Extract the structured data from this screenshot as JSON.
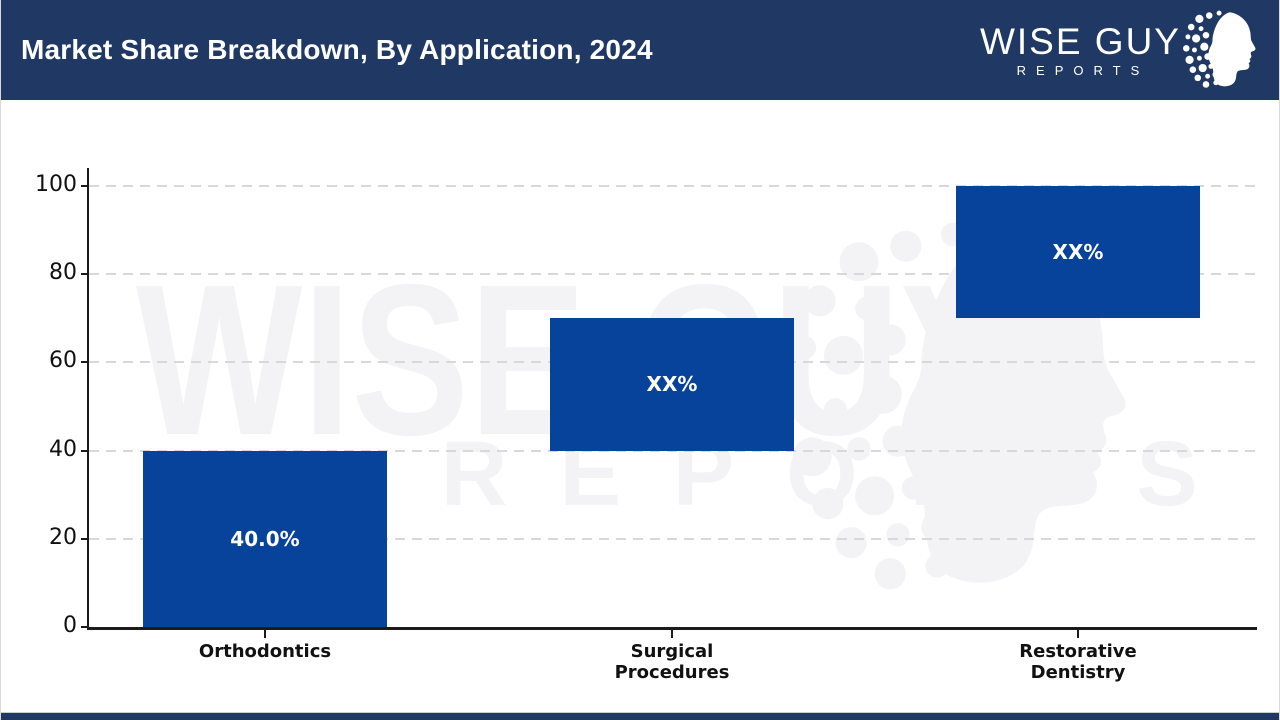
{
  "header": {
    "title": "Market Share Breakdown, By Application, 2024",
    "logo": {
      "line1": "WISE GUY",
      "line2": "REPORTS"
    }
  },
  "watermark": {
    "line1": "WISE GUY",
    "line2": "REPORTS"
  },
  "chart_data": {
    "type": "bar",
    "subtype": "waterfall-floating-segments",
    "title": "Market Share Breakdown, By Application, 2024",
    "categories": [
      "Orthodontics",
      "Surgical Procedures",
      "Restorative Dentistry"
    ],
    "category_display_lines": [
      [
        "Orthodontics"
      ],
      [
        "Surgical",
        "Procedures"
      ],
      [
        "Restorative",
        "Dentistry"
      ]
    ],
    "segments": [
      {
        "category": "Orthodontics",
        "start": 0,
        "end": 40,
        "label": "40.0%"
      },
      {
        "category": "Surgical Procedures",
        "start": 40,
        "end": 70,
        "label": "XX%"
      },
      {
        "category": "Restorative Dentistry",
        "start": 70,
        "end": 100,
        "label": "XX%"
      }
    ],
    "ylim": [
      0,
      100
    ],
    "yticks": [
      0,
      20,
      40,
      60,
      80,
      100
    ],
    "xlabel": "",
    "ylabel": "",
    "grid": {
      "horizontal": true,
      "style": "dashed"
    },
    "legend": null,
    "colors": {
      "bar": "#07429b",
      "bar_label": "#ffffff",
      "axis": "#1a1a1a",
      "gridline": "#d8d8d8",
      "header_bg": "#1f3864",
      "header_text": "#ffffff",
      "watermark": "#f3f3f5"
    }
  }
}
